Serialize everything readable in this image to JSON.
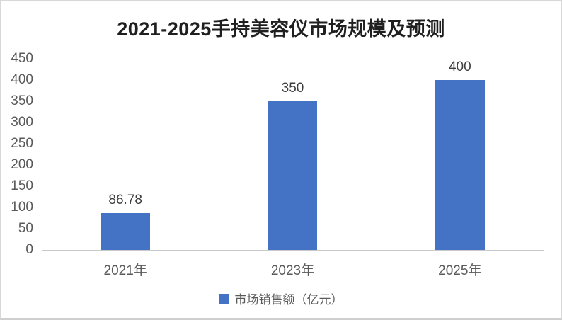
{
  "frame": {
    "background": "#ffffff",
    "border_color": "#d8d8d8"
  },
  "chart_data": {
    "type": "bar",
    "title": "2021-2025手持美容仪市场规模及预测",
    "categories": [
      "2021年",
      "2023年",
      "2025年"
    ],
    "series": [
      {
        "name": "市场销售额（亿元）",
        "values": [
          86.78,
          350,
          400
        ]
      }
    ],
    "value_labels": [
      "86.78",
      "350",
      "400"
    ],
    "xlabel": "",
    "ylabel": "",
    "ylim": [
      0,
      450
    ],
    "yticks": [
      0,
      50,
      100,
      150,
      200,
      250,
      300,
      350,
      400,
      450
    ],
    "grid": false,
    "legend": {
      "label": "市场销售额（亿元）",
      "position": "bottom",
      "swatch_color": "#4472C4"
    },
    "colors": {
      "bar": "#4472C4",
      "title_text": "#1f1f1f",
      "axis_text": "#595959",
      "value_label_text": "#3f3f3f",
      "axis_line": "#c9c9c9"
    }
  }
}
